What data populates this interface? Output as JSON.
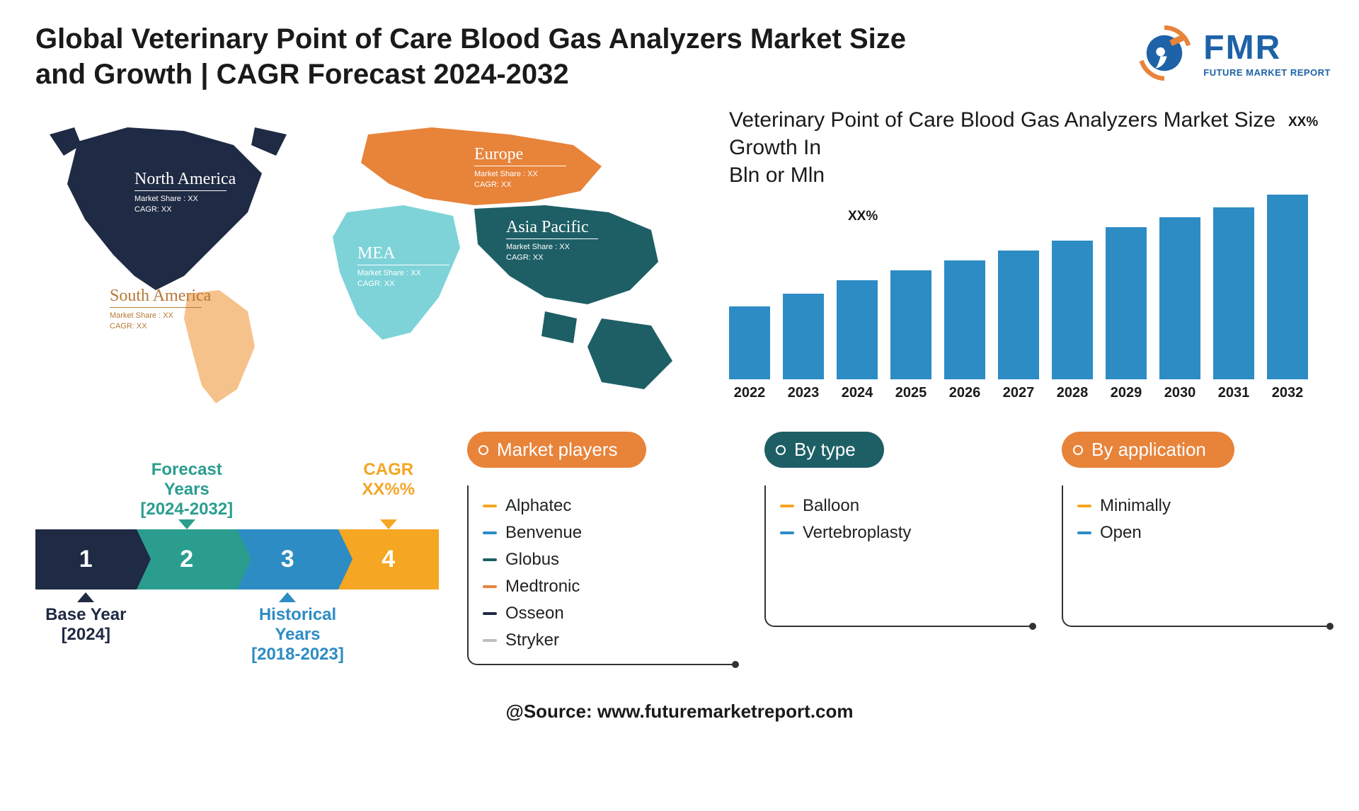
{
  "header": {
    "title": "Global Veterinary Point of Care Blood Gas Analyzers Market Size and Growth | CAGR Forecast 2024-2032",
    "logo_main": "FMR",
    "logo_sub": "FUTURE MARKET REPORT"
  },
  "colors": {
    "navy": "#1f2a44",
    "teal": "#2a9d8f",
    "blue": "#2d8cc4",
    "orange": "#e8833a",
    "cyan": "#5bc0c4",
    "darkteal": "#1e5f66",
    "amber": "#f5a623",
    "lightcyan": "#7dd3d8",
    "logo_orange": "#e8833a",
    "logo_blue": "#1e62a8"
  },
  "map": {
    "regions": [
      {
        "name": "North America",
        "share": "Market Share : XX",
        "cagr": "CAGR: XX",
        "color": "#1f2a44"
      },
      {
        "name": "South America",
        "share": "Market Share : XX",
        "cagr": "CAGR: XX",
        "color": "#f6c28b"
      },
      {
        "name": "Europe",
        "share": "Market Share : XX",
        "cagr": "CAGR: XX",
        "color": "#e8833a"
      },
      {
        "name": "MEA",
        "share": "Market Share : XX",
        "cagr": "CAGR: XX",
        "color": "#7dd3d8"
      },
      {
        "name": "Asia Pacific",
        "share": "Market Share : XX",
        "cagr": "CAGR: XX",
        "color": "#1e5f66"
      }
    ]
  },
  "chart": {
    "title": "Veterinary Point of Care Blood Gas Analyzers Market Size Growth In\nBln or Mln",
    "bar_color": "#2d8cc4",
    "pct_2024": "XX%",
    "pct_2032": "XX%",
    "years": [
      "2022",
      "2023",
      "2024",
      "2025",
      "2026",
      "2027",
      "2028",
      "2029",
      "2030",
      "2031",
      "2032"
    ],
    "values": [
      110,
      130,
      150,
      165,
      180,
      195,
      210,
      230,
      245,
      260,
      280
    ],
    "ymax": 300
  },
  "timeline": {
    "forecast_label": "Forecast Years",
    "forecast_range": "[2024-2032]",
    "cagr_label": "CAGR",
    "cagr_value": "XX%%",
    "base_label": "Base Year",
    "base_range": "[2024]",
    "hist_label": "Historical Years",
    "hist_range": "[2018-2023]",
    "segments": [
      {
        "n": "1",
        "color": "#1f2a44"
      },
      {
        "n": "2",
        "color": "#2a9d8f"
      },
      {
        "n": "3",
        "color": "#2d8cc4"
      },
      {
        "n": "4",
        "color": "#f5a623"
      }
    ]
  },
  "categories": [
    {
      "title": "Market players",
      "header_color": "#e8833a",
      "items": [
        {
          "label": "Alphatec",
          "tick": "#f5a623"
        },
        {
          "label": "Benvenue",
          "tick": "#2d8cc4"
        },
        {
          "label": "Globus",
          "tick": "#1e5f66"
        },
        {
          "label": "Medtronic",
          "tick": "#e8833a"
        },
        {
          "label": "Osseon",
          "tick": "#1f2a44"
        },
        {
          "label": "Stryker",
          "tick": "#bfbfbf"
        }
      ]
    },
    {
      "title": "By type",
      "header_color": "#1e5f66",
      "items": [
        {
          "label": "Balloon",
          "tick": "#f5a623"
        },
        {
          "label": "Vertebroplasty",
          "tick": "#2d8cc4"
        }
      ]
    },
    {
      "title": "By application",
      "header_color": "#e8833a",
      "items": [
        {
          "label": "Minimally",
          "tick": "#f5a623"
        },
        {
          "label": "Open",
          "tick": "#2d8cc4"
        }
      ]
    }
  ],
  "source": "@Source: www.futuremarketreport.com"
}
